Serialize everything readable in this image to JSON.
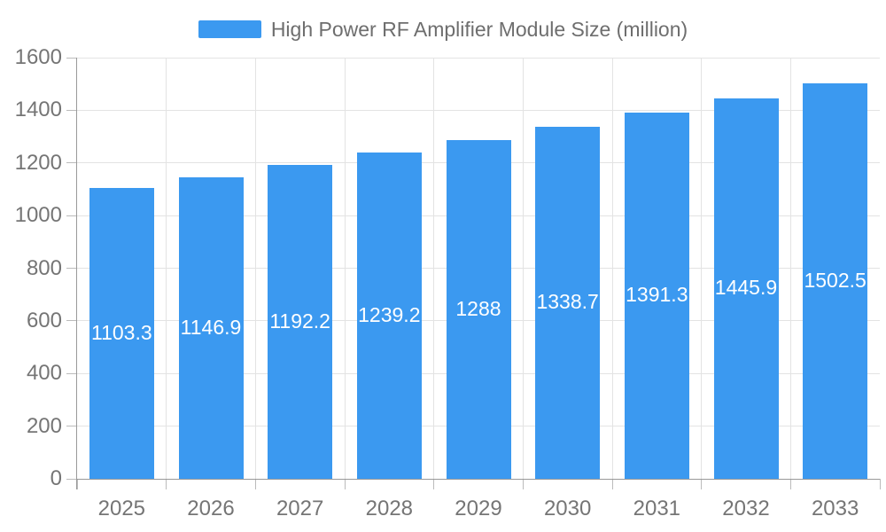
{
  "chart_data": {
    "type": "bar",
    "title": "High Power RF Amplifier Module Size (million)",
    "legend": [
      "High Power RF Amplifier Module Size (million)"
    ],
    "legend_position": "top",
    "categories": [
      "2025",
      "2026",
      "2027",
      "2028",
      "2029",
      "2030",
      "2031",
      "2032",
      "2033"
    ],
    "values": [
      1103.3,
      1146.9,
      1192.2,
      1239.2,
      1288,
      1338.7,
      1391.3,
      1445.9,
      1502.5
    ],
    "xlabel": "",
    "ylabel": "",
    "ylim": [
      0,
      1600
    ],
    "ytick_step": 200,
    "ytick_labels": [
      "0",
      "200",
      "400",
      "600",
      "800",
      "1000",
      "1200",
      "1400",
      "1600"
    ],
    "grid": true,
    "colors": {
      "bar": "#3B99F0",
      "value_label": "#FFFFFF",
      "axis_line": "#999999",
      "tick": "#BBBBBB",
      "gridline": "#E3E3E3",
      "axis_text": "#757575",
      "legend_text": "#6E6E6E",
      "background": "#FFFFFF"
    }
  }
}
